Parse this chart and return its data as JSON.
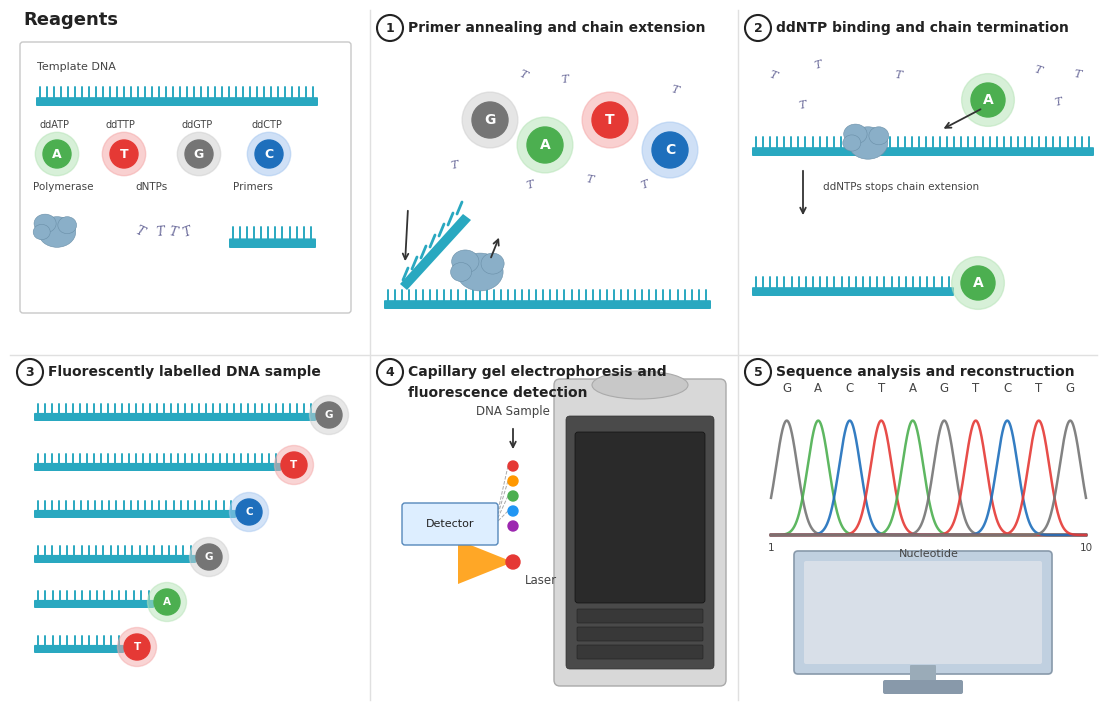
{
  "bg_color": "#ffffff",
  "dna_color": "#29a8c0",
  "dna_dark": "#1a7a8a",
  "nuc_colors": {
    "A": "#4caf50",
    "T": "#e53935",
    "G": "#757575",
    "C": "#1e6fbc"
  },
  "nuc_glow": {
    "A": "#b7e4b8",
    "T": "#f5aaaa",
    "G": "#d0d0d0",
    "C": "#a8c8f0"
  },
  "poly_color": "#8aafc8",
  "poly_dark": "#6a8fa8",
  "ddntp_labels": [
    "ddATP",
    "ddTTP",
    "ddGTP",
    "ddCTP"
  ],
  "ddntp_letters": [
    "A",
    "T",
    "G",
    "C"
  ],
  "seq_letters": [
    "G",
    "A",
    "C",
    "T",
    "A",
    "G",
    "T",
    "C",
    "T",
    "G"
  ],
  "seq_colors": [
    "#757575",
    "#4caf50",
    "#1e6fbc",
    "#e53935",
    "#4caf50",
    "#757575",
    "#e53935",
    "#1e6fbc",
    "#e53935",
    "#757575"
  ],
  "panel_bg": "#ffffff",
  "box_edge": "#c8c8c8",
  "text_dark": "#222222",
  "text_mid": "#444444",
  "sep_color": "#e0e0e0",
  "float_ntp_color": "#6a6a9a"
}
